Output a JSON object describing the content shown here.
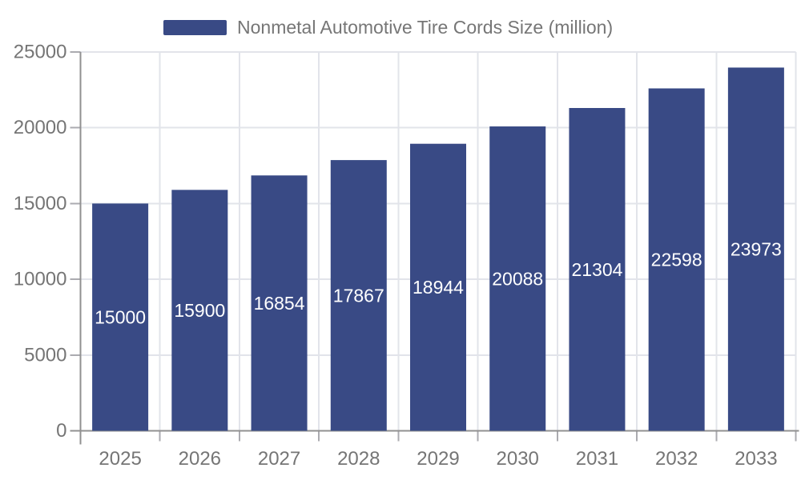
{
  "chart_data": {
    "type": "bar",
    "title": "Nonmetal Automotive Tire Cords Size (million)",
    "legend": {
      "label": "Nonmetal Automotive Tire Cords Size (million)",
      "position": "top"
    },
    "categories": [
      "2025",
      "2026",
      "2027",
      "2028",
      "2029",
      "2030",
      "2031",
      "2032",
      "2033"
    ],
    "values": [
      15000,
      15900,
      16854,
      17867,
      18944,
      20088,
      21304,
      22598,
      23973
    ],
    "xlabel": "",
    "ylabel": "",
    "ylim": [
      0,
      25000
    ],
    "yticks": [
      0,
      5000,
      10000,
      15000,
      20000,
      25000
    ],
    "grid": true,
    "value_labels": "inside-center",
    "colors": {
      "bar": "#394A85",
      "value_label": "#FFFFFF",
      "axis_label": "#757575",
      "axis_line": "#919191",
      "tick_line": "#ABABB0",
      "grid_line": "#E2E4EA",
      "background": "#FFFFFF"
    }
  }
}
